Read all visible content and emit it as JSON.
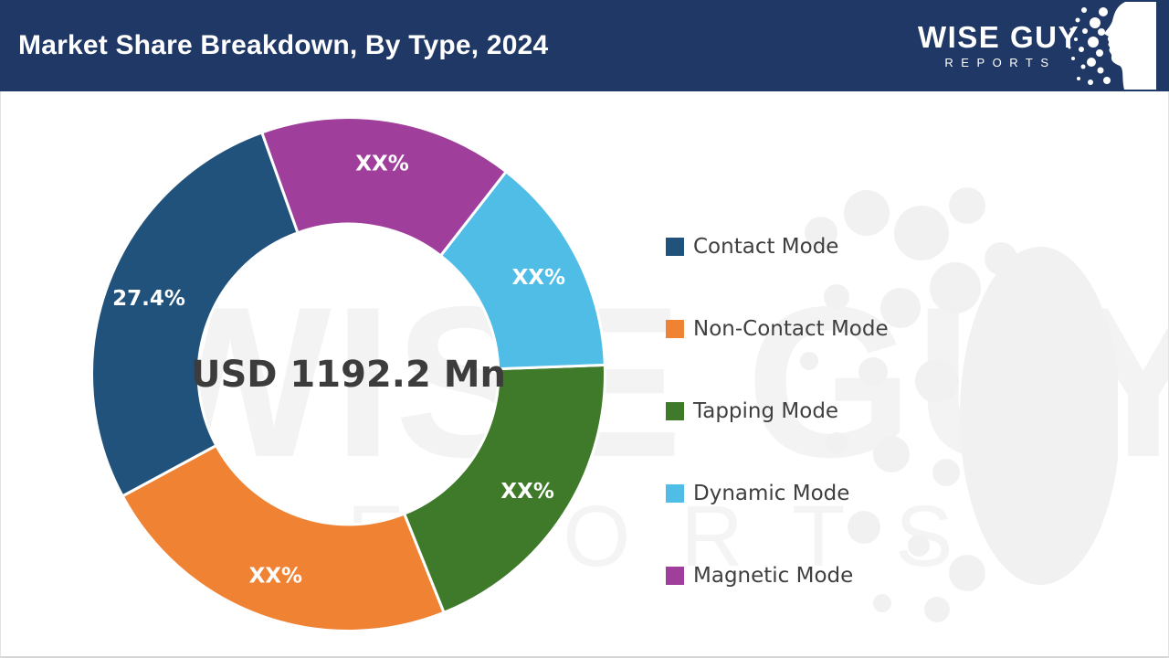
{
  "header": {
    "title": "Market Share Breakdown, By Type, 2024",
    "bg_color": "#1f3866",
    "logo": {
      "line1": "WISE GUY",
      "line2": "REPORTS"
    }
  },
  "watermark": {
    "line1": "WISE GUY",
    "line2": "REPORTS"
  },
  "chart_data": {
    "type": "pie",
    "subtype": "donut",
    "title": "Market Share Breakdown, By Type, 2024",
    "center_label": "USD 1192.2 Mn",
    "legend_position": "right",
    "start_angle_deg": -19.7,
    "direction": "counterclockwise",
    "inner_radius_ratio": 0.585,
    "segments": [
      {
        "label": "Contact Mode",
        "value_pct": 27.4,
        "display_label": "27.4%",
        "color": "#20527b"
      },
      {
        "label": "Non-Contact Mode",
        "value_pct": 23.2,
        "display_label": "XX%",
        "color": "#ef8233"
      },
      {
        "label": "Tapping Mode",
        "value_pct": 19.5,
        "display_label": "XX%",
        "color": "#3e7a29"
      },
      {
        "label": "Dynamic Mode",
        "value_pct": 13.9,
        "display_label": "XX%",
        "color": "#4fbde6"
      },
      {
        "label": "Magnetic Mode",
        "value_pct": 16.0,
        "display_label": "XX%",
        "color": "#a03e9b"
      }
    ]
  }
}
